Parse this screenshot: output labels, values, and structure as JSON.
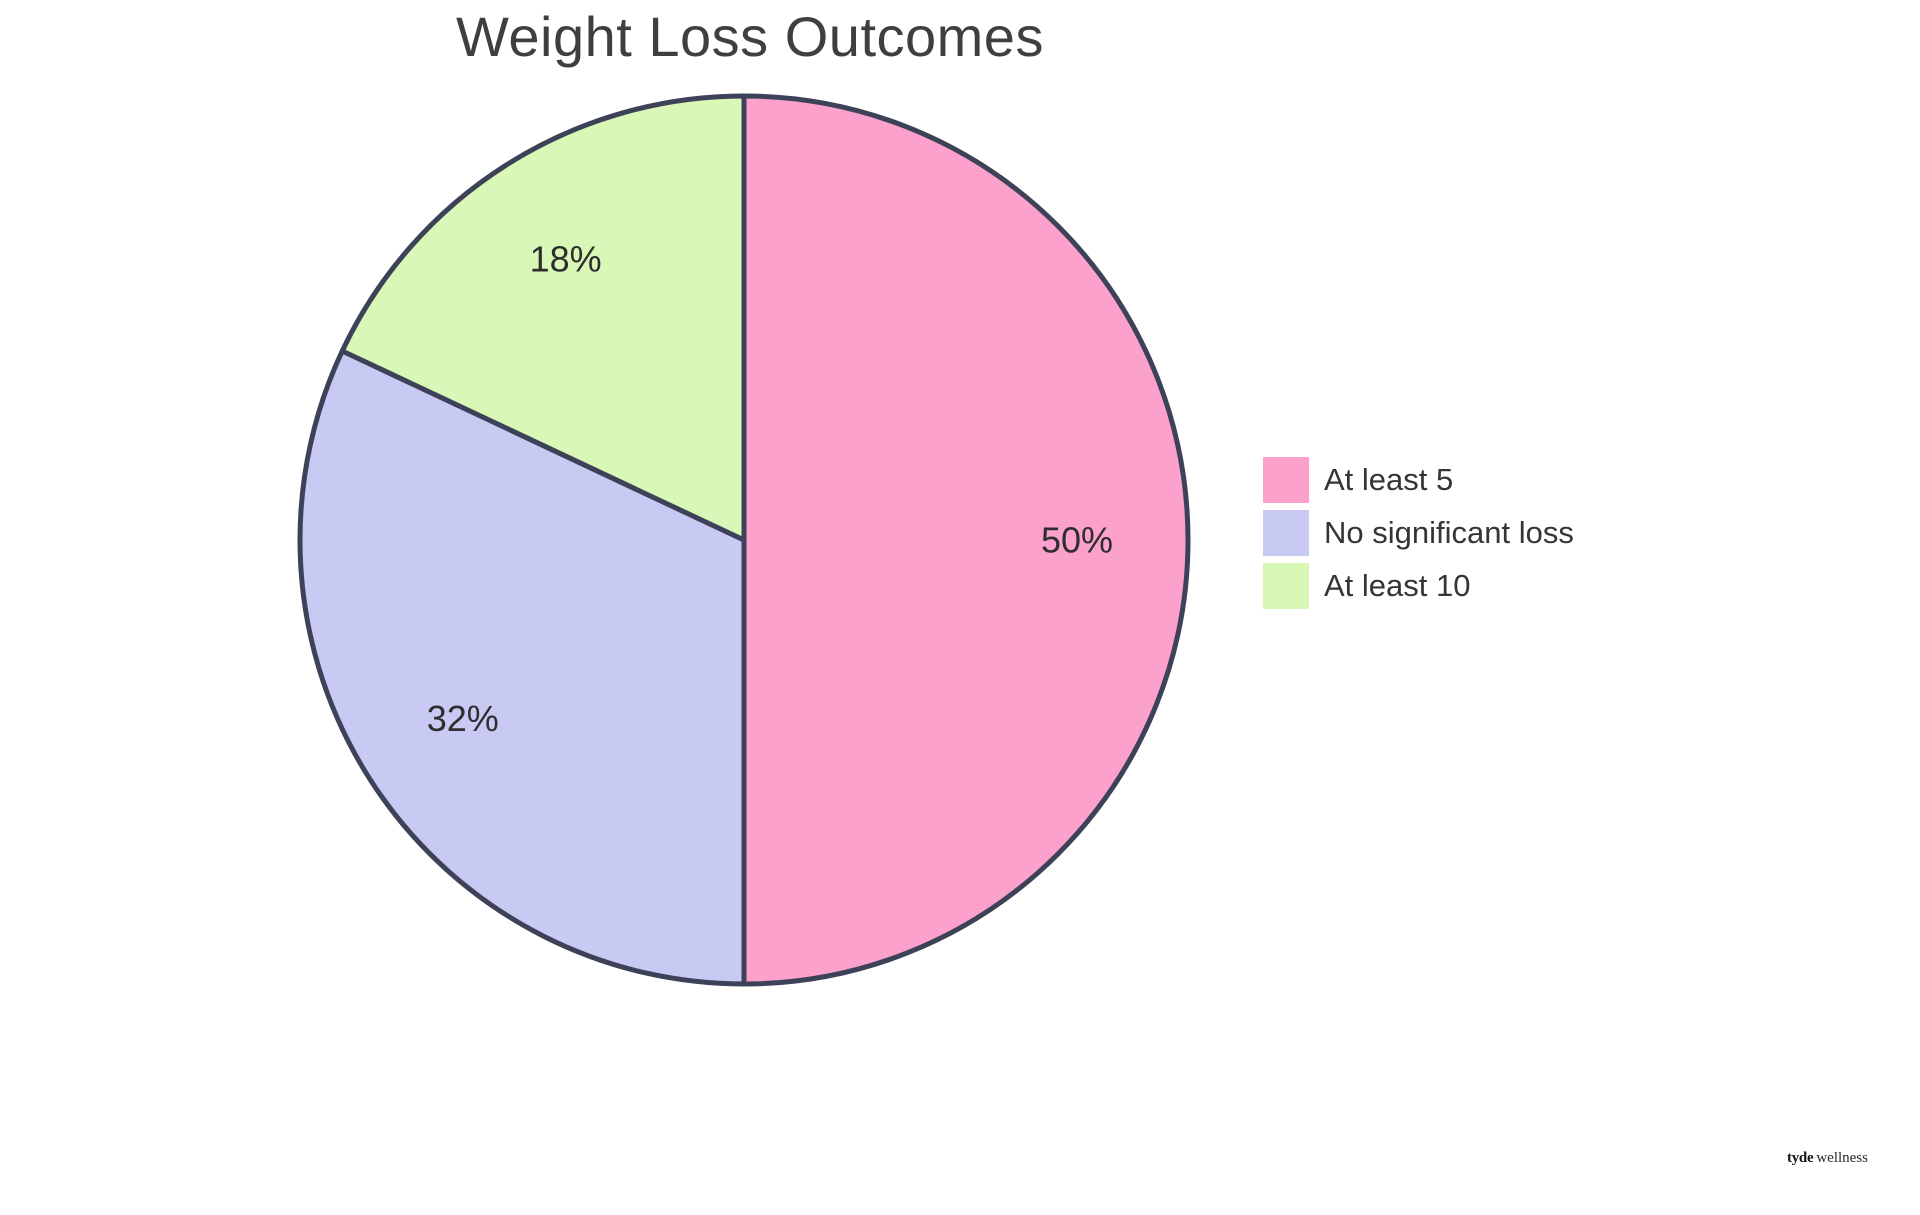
{
  "title": "Weight Loss Outcomes",
  "watermark": {
    "brand_bold": "tyde",
    "brand_light": "wellness"
  },
  "chart_data": {
    "type": "pie",
    "title": "Weight Loss Outcomes",
    "labels": [
      "At least 5",
      "No significant loss",
      "At least 10"
    ],
    "values": [
      50,
      32,
      18
    ],
    "slice_labels": [
      "50%",
      "32%",
      "18%"
    ],
    "colors": [
      "#FBA1CC",
      "#C9CAF4",
      "#D9F7B6"
    ],
    "stroke_color": "#3D4259",
    "stroke_width": 5,
    "start_angle_deg": 0,
    "direction": "clockwise",
    "legend_position": "right",
    "title_color": "#3F3F3F",
    "label_text_color": "#2E2E2E",
    "background_color": "#FFFFFF"
  }
}
